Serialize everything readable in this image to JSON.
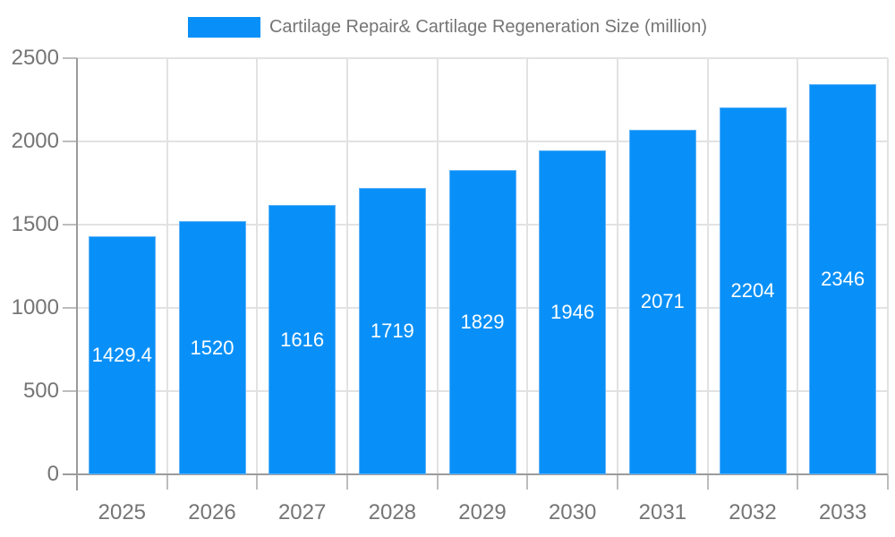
{
  "chart_data": {
    "type": "bar",
    "title": "Cartilage Repair& Cartilage Regeneration Size (million)",
    "categories": [
      "2025",
      "2026",
      "2027",
      "2028",
      "2029",
      "2030",
      "2031",
      "2032",
      "2033"
    ],
    "values": [
      1429.4,
      1520,
      1616,
      1719,
      1829,
      1946,
      2071,
      2204,
      2346
    ],
    "xlabel": "",
    "ylabel": "",
    "ylim": [
      0,
      2500
    ],
    "yticks": [
      0,
      500,
      1000,
      1500,
      2000,
      2500
    ],
    "grid": true,
    "legend_position": "top-center",
    "colors": {
      "bar": "#0990F8",
      "bar_edge": "#5FB3F9",
      "bar_label": "#FFFFFF",
      "axis_text": "#757575",
      "legend_text": "#757575",
      "grid_line": "#E2E2E2",
      "tick_line": "#BDBDBD",
      "axis_line": "#9B9B9B",
      "background": "#FFFFFF"
    }
  }
}
